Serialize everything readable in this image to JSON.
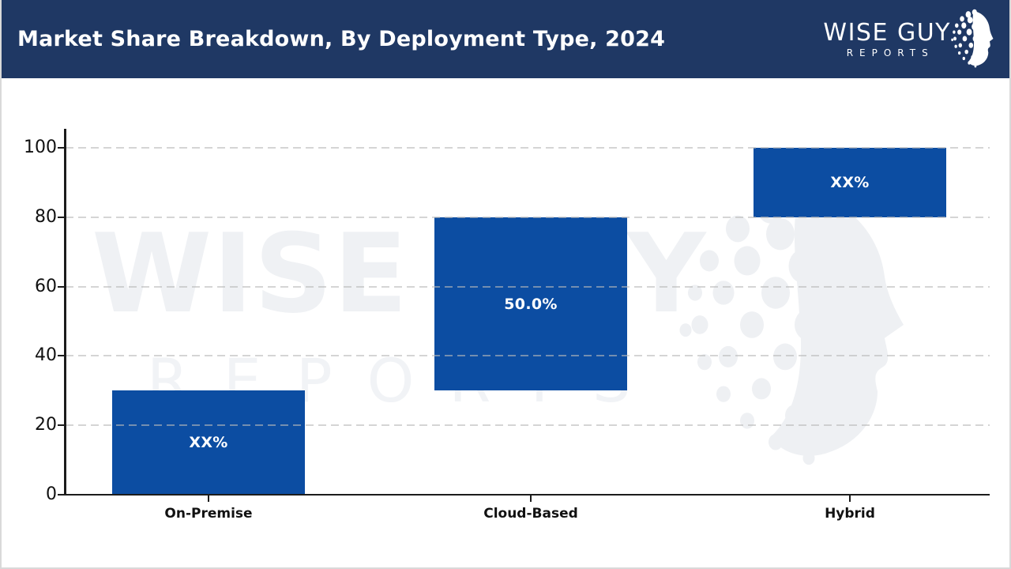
{
  "header": {
    "title": "Market Share Breakdown, By Deployment Type, 2024",
    "logo": {
      "wordmark": "WISE GUY",
      "subtext": "REPORTS"
    }
  },
  "watermark": {
    "wordmark": "WISE GUY",
    "subtext": "REPORTS"
  },
  "chart_data": {
    "type": "bar",
    "subtype": "waterfall-stacked-percentage",
    "title": "Market Share Breakdown, By Deployment Type, 2024",
    "categories": [
      "On-Premise",
      "Cloud-Based",
      "Hybrid"
    ],
    "series": [
      {
        "name": "On-Premise",
        "start": 0,
        "end": 30,
        "label": "XX%"
      },
      {
        "name": "Cloud-Based",
        "start": 30,
        "end": 80,
        "label": "50.0%"
      },
      {
        "name": "Hybrid",
        "start": 80,
        "end": 100,
        "label": "XX%"
      }
    ],
    "values_masked_except": "Cloud-Based",
    "xlabel": "",
    "ylabel": "",
    "ylim": [
      0,
      105
    ],
    "yticks": [
      0,
      20,
      40,
      60,
      80,
      100
    ],
    "grid": "dashed-horizontal-over-bars",
    "legend": "none",
    "bar_color": "#0C4DA2",
    "bar_label_color": "#FFFFFF",
    "header_color": "#1F3864",
    "axis_color": "#1c1c1c"
  }
}
